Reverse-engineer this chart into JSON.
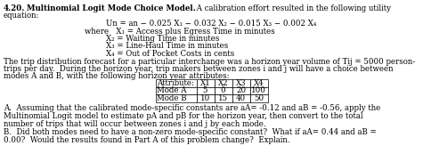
{
  "number": "4.20.",
  "title_bold": "Multinomial Logit Mode Choice Model.",
  "title_rest": " A calibration effort resulted in the following utility",
  "title_rest2": "equation:",
  "utility_eq": "Un = an - 0.025 X1 - 0.032 X2 - 0.015 X3 - 0.002 X4",
  "where_lines": [
    "where   X1 = Access plus Egress Time in minutes",
    "X2 = Waiting Time in minutes",
    "X3 = Line-Haul Time in minutes",
    "X4 = Out of Pocket Costs in cents"
  ],
  "body_lines": [
    "The trip distribution forecast for a particular interchange was a horizon year volume of Tij = 5000 person-",
    "trips per day.  During the horizon year, trip makers between zones i and j will have a choice between",
    "modes A and B, with the following horizon year attributes:"
  ],
  "table_headers": [
    "Attribute:",
    "X1",
    "X2",
    "X3",
    "X4"
  ],
  "table_rows": [
    [
      "Mode A",
      "5",
      "0",
      "20",
      "100"
    ],
    [
      "Mode B",
      "10",
      "15",
      "40",
      "50"
    ]
  ],
  "part_a_lines": [
    "A.  Assuming that the calibrated mode-specific constants are aA= -0.12 and aB = -0.56, apply the",
    "Multinomial Logit model to estimate pA and pB for the horizon year, then convert to the total",
    "number of trips that will occur between zones i and j by each mode."
  ],
  "part_b_lines": [
    "B.  Did both modes need to have a non-zero mode-specific constant?  What if aA= 0.44 and aB =",
    "0.00?  Would the results found in Part A of this problem change?  Explain."
  ],
  "bg_color": "#ffffff",
  "text_color": "#000000",
  "fs": 6.2,
  "fs_eq": 6.2,
  "lh": 8.5
}
